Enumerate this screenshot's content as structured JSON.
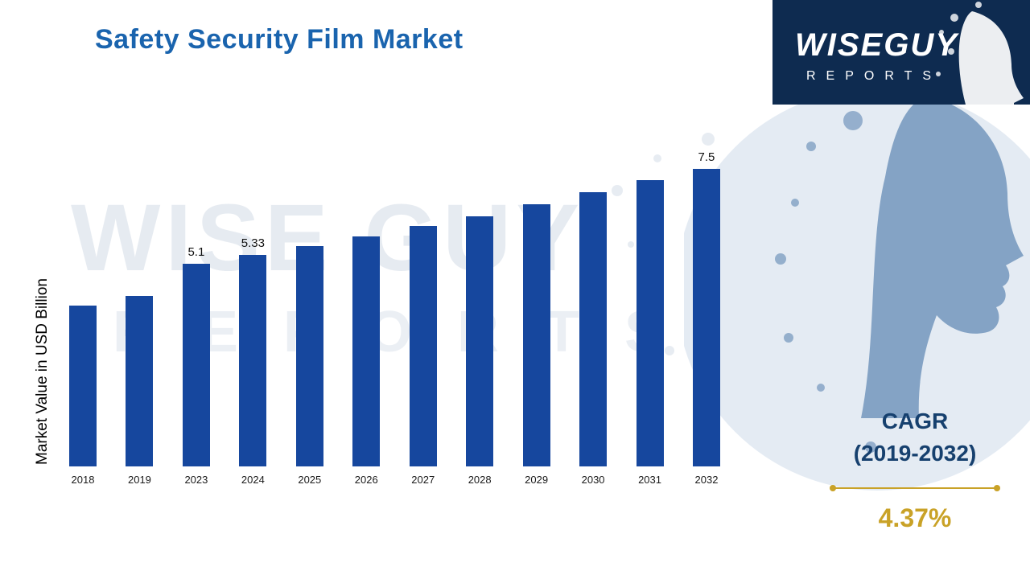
{
  "title": "Safety Security Film Market",
  "logo": {
    "top": "WISEGUY",
    "bottom": "REPORTS"
  },
  "watermark": {
    "line1": "WISE GUY",
    "line2": "REPORTS"
  },
  "chart_data": {
    "type": "bar",
    "title": "Safety Security Film Market",
    "ylabel": "Market Value in USD Billion",
    "xlabel": "",
    "categories": [
      "2018",
      "2019",
      "2023",
      "2024",
      "2025",
      "2026",
      "2027",
      "2028",
      "2029",
      "2030",
      "2031",
      "2032"
    ],
    "values": [
      4.05,
      4.3,
      5.1,
      5.33,
      5.55,
      5.8,
      6.05,
      6.3,
      6.6,
      6.9,
      7.2,
      7.5
    ],
    "value_labels": {
      "2023": "5.1",
      "2024": "5.33",
      "2032": "7.5"
    },
    "ylim": [
      0,
      8
    ],
    "grid": false,
    "legend": false,
    "bar_color": "#16479e"
  },
  "cagr": {
    "label": "CAGR",
    "range": "(2019-2032)",
    "value": "4.37%"
  },
  "colors": {
    "title_blue": "#1a64ae",
    "bar_blue": "#16479e",
    "navy_block": "#0e2b50",
    "accent_gold": "#c9a227",
    "cagr_navy": "#16406e"
  }
}
